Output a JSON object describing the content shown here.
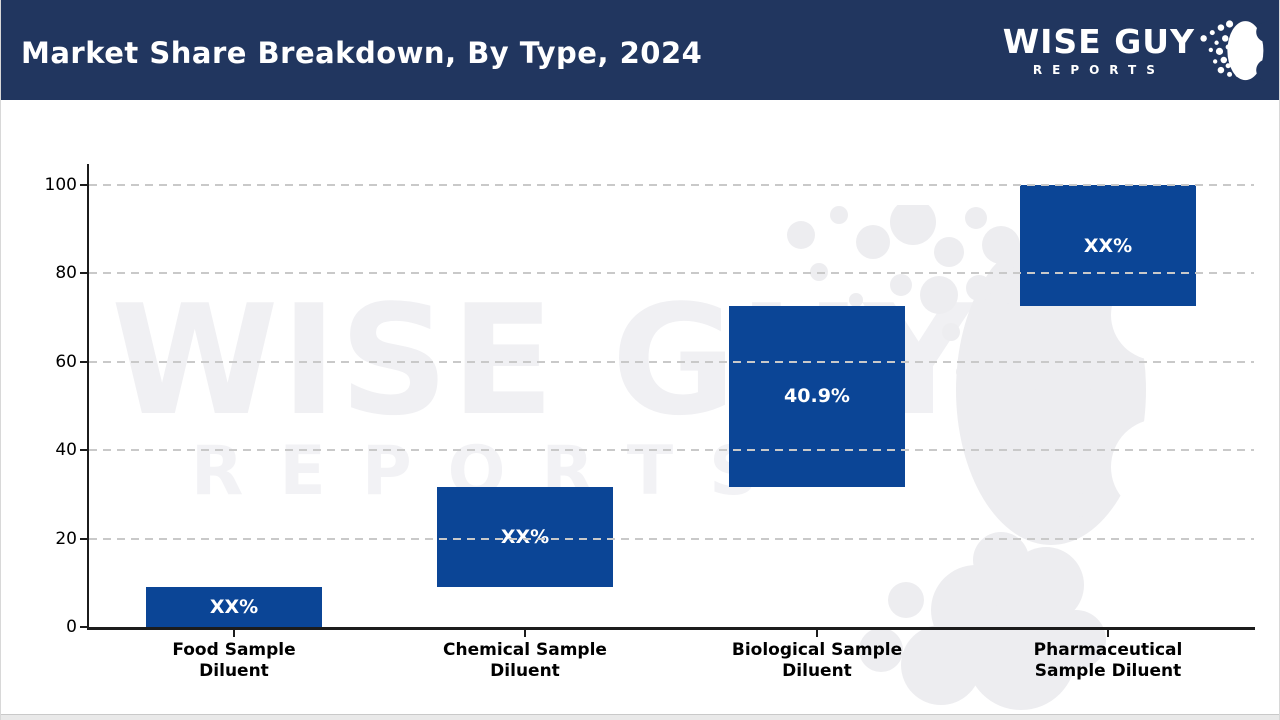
{
  "header": {
    "title": "Market Share Breakdown, By Type, 2024",
    "logo": {
      "line1": "WISE GUY",
      "line2": "REPORTS"
    }
  },
  "watermark": {
    "line1": "WISE GUY",
    "line2": "REPORTS"
  },
  "colors": {
    "header_bg": "#21365f",
    "bar_blue": "#0b4596",
    "axis": "#1c1c1c",
    "gridline": "#c9c9c9",
    "watermark_gray": "#ededf0",
    "page_border": "#d8d8d8"
  },
  "chart_data": {
    "type": "bar",
    "subtype": "waterfall",
    "title": "Market Share Breakdown, By Type, 2024",
    "categories": [
      "Food Sample\nDiluent",
      "Chemical Sample\nDiluent",
      "Biological Sample\nDiluent",
      "Pharmaceutical\nSample Diluent"
    ],
    "segments": [
      {
        "category": "Food Sample Diluent",
        "start": 0,
        "end": 9,
        "label": "XX%"
      },
      {
        "category": "Chemical Sample Diluent",
        "start": 9,
        "end": 31.7,
        "label": "XX%"
      },
      {
        "category": "Biological Sample Diluent",
        "start": 31.7,
        "end": 72.6,
        "label": "40.9%"
      },
      {
        "category": "Pharmaceutical Sample Diluent",
        "start": 72.6,
        "end": 100,
        "label": "XX%"
      }
    ],
    "ylim": [
      0,
      100
    ],
    "yticks": [
      0,
      20,
      40,
      60,
      80,
      100
    ],
    "grid": true,
    "legend": false,
    "bar_color": "#0b4596",
    "bar_label_color": "#ffffff",
    "xlabel": "",
    "ylabel": ""
  }
}
